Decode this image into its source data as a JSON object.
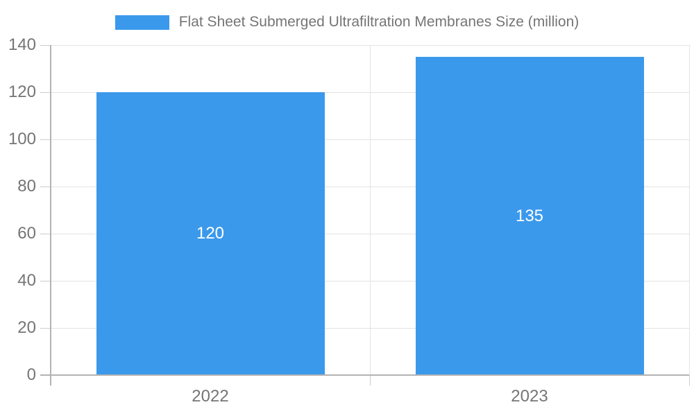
{
  "chart_data": {
    "type": "bar",
    "legend": "Flat Sheet Submerged Ultrafiltration Membranes Size (million)",
    "series": [
      {
        "name": "Flat Sheet Submerged Ultrafiltration Membranes Size (million)",
        "values": [
          120,
          135
        ]
      }
    ],
    "categories": [
      "2022",
      "2023"
    ],
    "bar_value_labels": [
      "120",
      "135"
    ],
    "title": "",
    "xlabel": "",
    "ylabel": "",
    "ylim": [
      0,
      140
    ],
    "yticks": [
      0,
      20,
      40,
      60,
      80,
      100,
      120,
      140
    ],
    "grid": true,
    "legend_position": "top-center",
    "colors": {
      "bar": "#3B99EC",
      "axis": "#B3B3B3",
      "grid": "#E3E3E3",
      "tick": "#CCCCCC",
      "label_text": "#757575",
      "bar_value_text": "#FFFFFF",
      "background": "#FFFFFF"
    }
  }
}
